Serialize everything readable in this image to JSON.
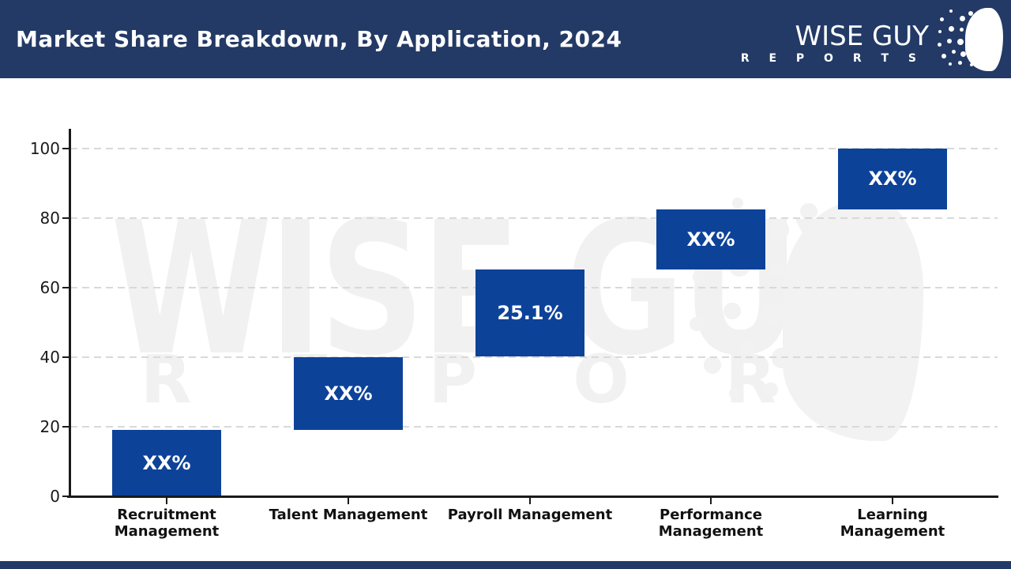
{
  "header": {
    "title": "Market Share Breakdown, By Application, 2024",
    "bg_color": "#233a66",
    "text_color": "#ffffff",
    "logo": {
      "name": "WISE GUY",
      "tagline": "R E P O R T S"
    }
  },
  "watermark": {
    "line1": "WISE GUY",
    "line2": "R E P O R T S"
  },
  "footer": {
    "bg_color": "#233a66"
  },
  "chart_data": {
    "type": "bar",
    "variant": "waterfall",
    "title": "Market Share Breakdown, By Application, 2024",
    "categories": [
      "Recruitment Management",
      "Talent Management",
      "Payroll Management",
      "Performance Management",
      "Learning Management"
    ],
    "category_lines": [
      [
        "Recruitment",
        "Management"
      ],
      [
        "Talent Management"
      ],
      [
        "Payroll Management"
      ],
      [
        "Performance",
        "Management"
      ],
      [
        "Learning",
        "Management"
      ]
    ],
    "bars": [
      {
        "category": "Recruitment Management",
        "label": "XX%",
        "start": 0,
        "end": 18.9
      },
      {
        "category": "Talent Management",
        "label": "XX%",
        "start": 18.9,
        "end": 39.8
      },
      {
        "category": "Payroll Management",
        "label": "25.1%",
        "start": 40.0,
        "end": 65.1
      },
      {
        "category": "Performance Management",
        "label": "XX%",
        "start": 65.1,
        "end": 82.5
      },
      {
        "category": "Learning Management",
        "label": "XX%",
        "start": 82.5,
        "end": 100.0
      }
    ],
    "y_ticks": [
      0,
      20,
      40,
      60,
      80,
      100
    ],
    "ylim": [
      0,
      106
    ],
    "xlabel": "",
    "ylabel": "",
    "legend": "none",
    "grid": "horizontal-dashed",
    "colors": {
      "bar": "#0d4299",
      "bar_label": "#ffffff",
      "axis": "#1a1a1a",
      "grid": "#d9d9d9",
      "watermark": "#f1f1f1"
    }
  }
}
